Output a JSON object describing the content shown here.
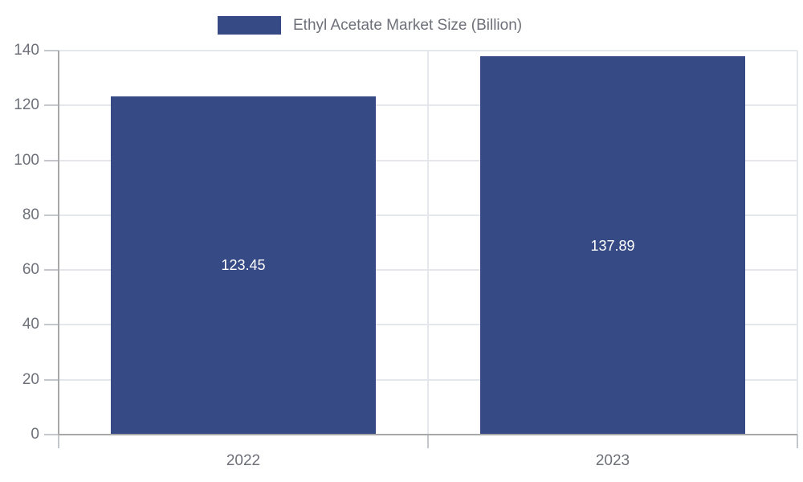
{
  "chart_data": {
    "type": "bar",
    "title": "",
    "xlabel": "",
    "ylabel": "",
    "legend": {
      "label": "Ethyl Acetate Market Size (Billion)",
      "position": "top-center"
    },
    "categories": [
      "2022",
      "2023"
    ],
    "series": [
      {
        "name": "Ethyl Acetate Market Size (Billion)",
        "values": [
          123.45,
          137.89
        ]
      }
    ],
    "value_labels": [
      "123.45",
      "137.89"
    ],
    "ylim": [
      0,
      140
    ],
    "yticks": [
      0,
      20,
      40,
      60,
      80,
      100,
      120,
      140
    ],
    "grid": true,
    "colors": {
      "bar": "#364A86",
      "text": "#6E7079",
      "value_label": "#FFFFFF",
      "gridline": "#E4E7EC",
      "axis": "#A8A8A8",
      "tick": "#C4C7CC",
      "background": "#FFFFFF"
    }
  }
}
